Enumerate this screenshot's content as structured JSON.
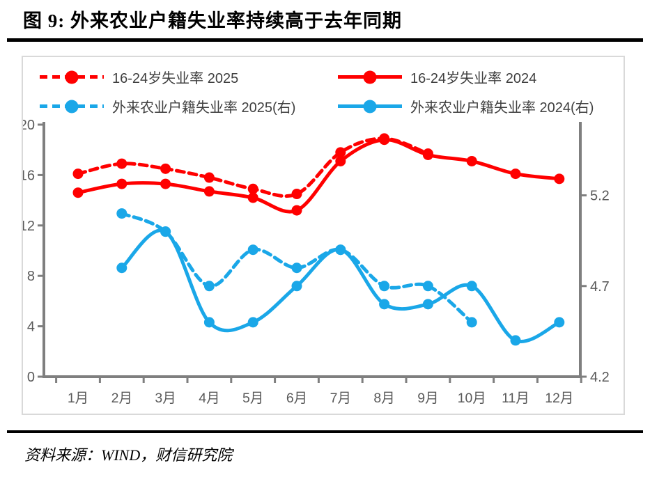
{
  "page": {
    "title": "图 9:  外来农业户籍失业率持续高于去年同期",
    "source": "资料来源：WIND，财信研究院"
  },
  "chart_data": {
    "type": "line",
    "title": "外来农业户籍失业率持续高于去年同期",
    "categories": [
      "1月",
      "2月",
      "3月",
      "4月",
      "5月",
      "6月",
      "7月",
      "8月",
      "9月",
      "10月",
      "11月",
      "12月"
    ],
    "left_axis": {
      "min": 0,
      "max": 20,
      "ticks": [
        0,
        4,
        8,
        12,
        16,
        20
      ]
    },
    "right_axis": {
      "min": 4.2,
      "max": 5.59,
      "ticks": [
        4.2,
        4.7,
        5.2
      ],
      "note": "右"
    },
    "legend_position": "top",
    "grid": false,
    "colors": {
      "red": "#FF0000",
      "blue": "#1AA7E8",
      "axis": "#7F7F7F",
      "tick_label": "#595959",
      "frame": "#D9D9D9"
    },
    "series": [
      {
        "name": "16-24岁失业率 2025",
        "color": "red",
        "style": "dashed",
        "axis": "left",
        "start_month": 1,
        "values": [
          16.1,
          16.9,
          16.5,
          15.8,
          14.9,
          14.5,
          17.8,
          18.9,
          17.7
        ]
      },
      {
        "name": "16-24岁失业率 2024",
        "color": "red",
        "style": "solid",
        "axis": "left",
        "start_month": 1,
        "values": [
          14.6,
          15.3,
          15.3,
          14.7,
          14.2,
          13.2,
          17.1,
          18.8,
          17.6,
          17.1,
          16.1,
          15.7
        ]
      },
      {
        "name": "外来农业户籍失业率 2025(右)",
        "color": "blue",
        "style": "dashed",
        "axis": "right",
        "start_month": 2,
        "values": [
          5.1,
          5.0,
          4.7,
          4.9,
          4.8,
          4.9,
          4.7,
          4.7,
          4.5
        ]
      },
      {
        "name": "外来农业户籍失业率 2024(右)",
        "color": "blue",
        "style": "solid",
        "axis": "right",
        "start_month": 2,
        "values": [
          4.8,
          5.0,
          4.5,
          4.5,
          4.7,
          4.9,
          4.6,
          4.6,
          4.7,
          4.4,
          4.5
        ]
      }
    ]
  }
}
